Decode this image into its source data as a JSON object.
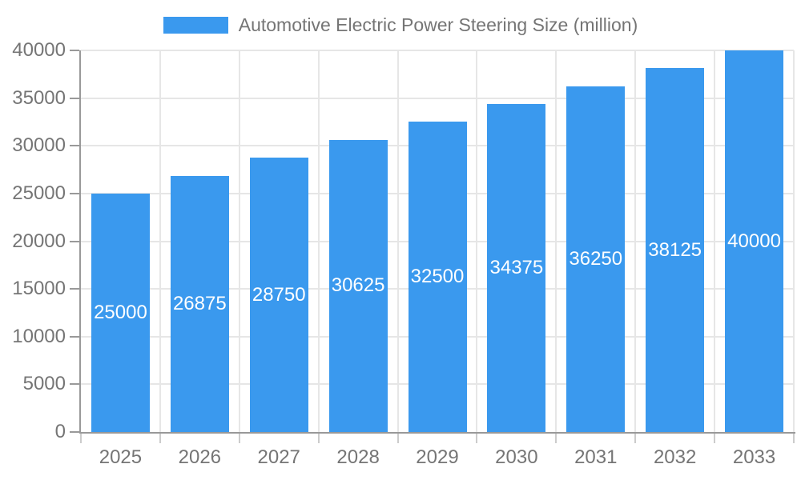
{
  "legend": {
    "label": "Automotive Electric Power Steering Size (million)"
  },
  "chart_data": {
    "type": "bar",
    "title": "Automotive Electric Power Steering Size (million)",
    "series_name": "Automotive Electric Power Steering Size (million)",
    "categories": [
      "2025",
      "2026",
      "2027",
      "2028",
      "2029",
      "2030",
      "2031",
      "2032",
      "2033"
    ],
    "values": [
      25000,
      26875,
      28750,
      30625,
      32500,
      34375,
      36250,
      38125,
      40000
    ],
    "bar_value_labels": [
      "25000",
      "26875",
      "28750",
      "30625",
      "32500",
      "34375",
      "36250",
      "38125",
      "40000"
    ],
    "xlabel": "",
    "ylabel": "",
    "ylim": [
      0,
      40000
    ],
    "ytick_step": 5000,
    "ytick_labels": [
      "0",
      "5000",
      "10000",
      "15000",
      "20000",
      "25000",
      "30000",
      "35000",
      "40000"
    ],
    "grid": true,
    "legend_position": "top-center",
    "value_label_position": "inside-center",
    "colors": {
      "bar": "#3A99EE",
      "bar_label": "#FFFFFF",
      "grid_line": "#E6E6E6",
      "axis_line": "#999999",
      "x_tick": "#CCCCCC",
      "tick_text": "#757575",
      "legend_text": "#757575",
      "background": "#FFFFFF"
    }
  }
}
